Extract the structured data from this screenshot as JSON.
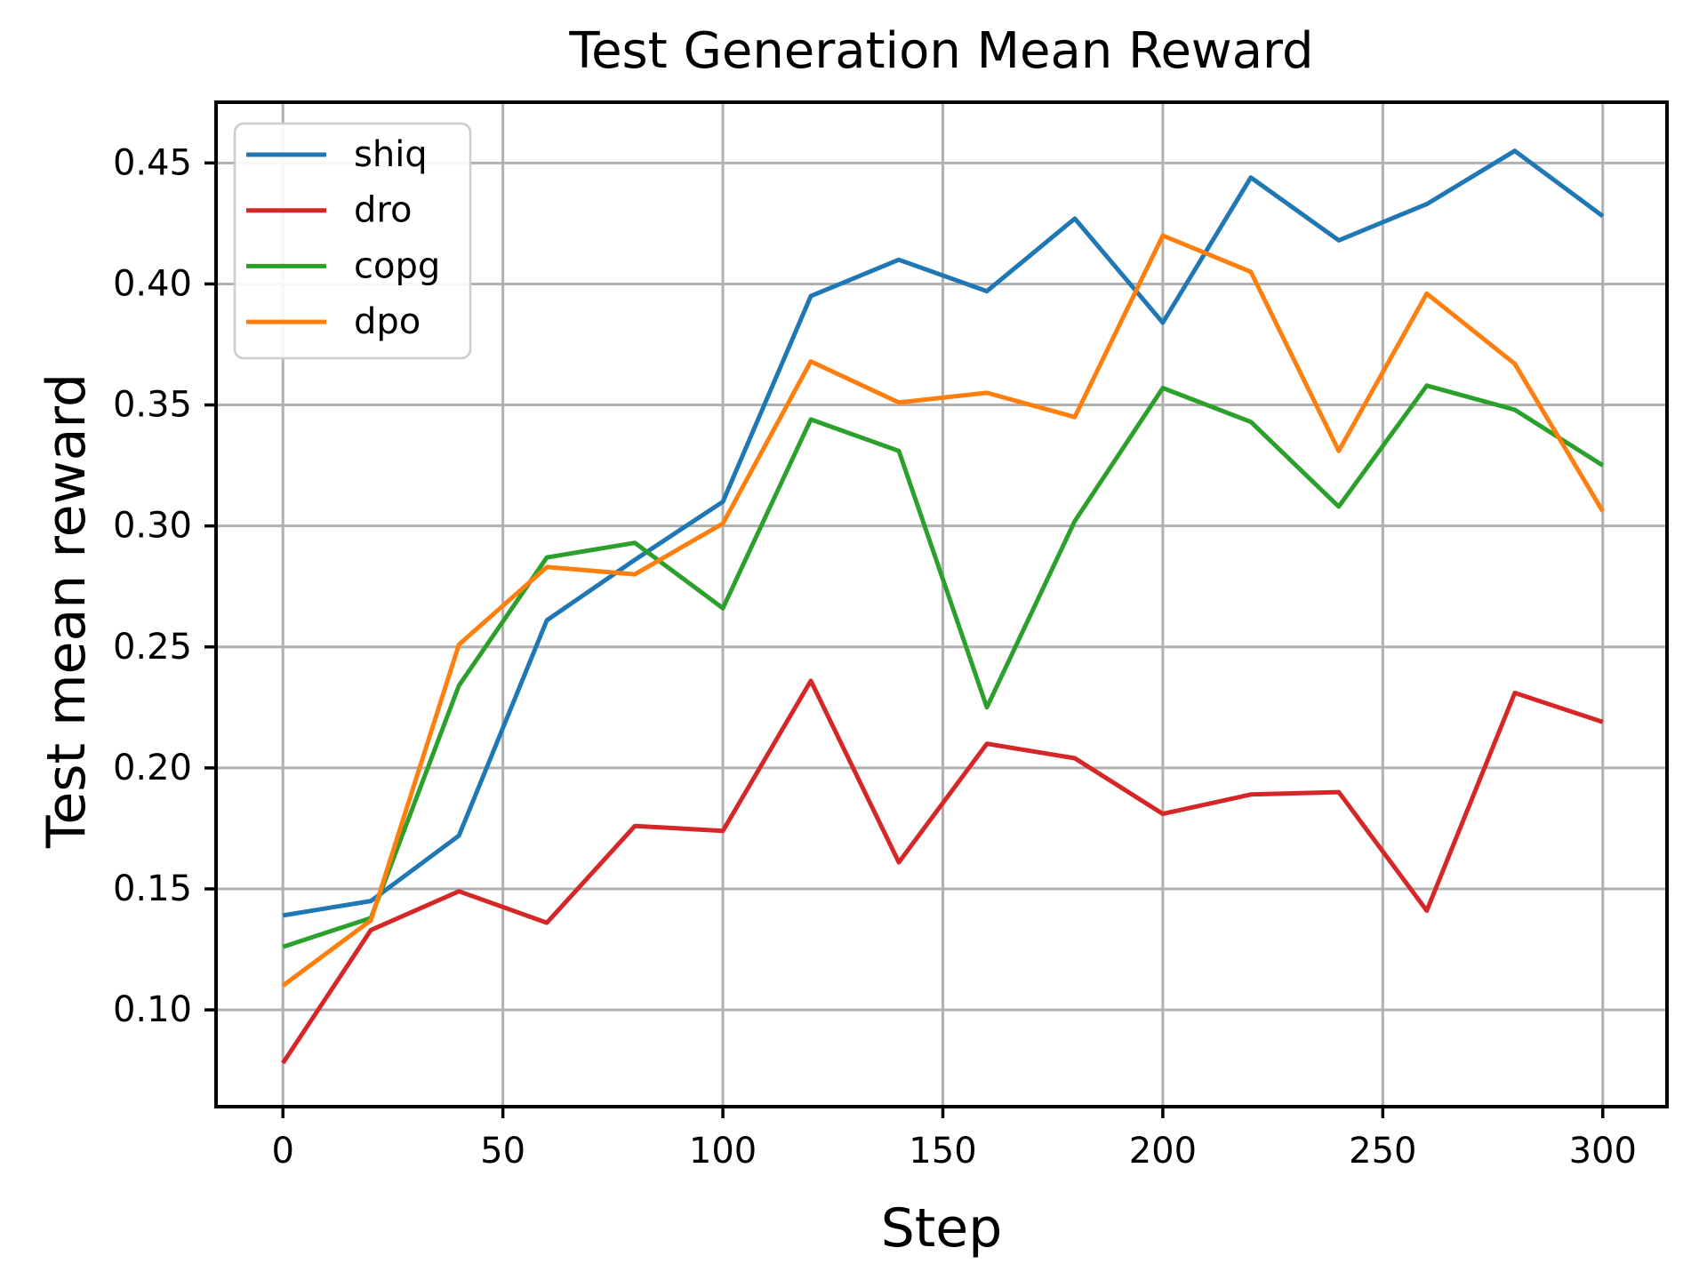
{
  "figure": {
    "title": "Test Generation Mean Reward"
  },
  "chart_data": {
    "type": "line",
    "title": "Test Generation Mean Reward",
    "xlabel": "Step",
    "ylabel": "Test mean reward",
    "x": [
      0,
      20,
      40,
      60,
      80,
      100,
      120,
      140,
      160,
      180,
      200,
      220,
      240,
      260,
      280,
      300
    ],
    "series": [
      {
        "name": "shiq",
        "color": "#1f77b4",
        "values": [
          0.139,
          0.145,
          0.172,
          0.261,
          0.286,
          0.31,
          0.395,
          0.41,
          0.397,
          0.427,
          0.384,
          0.444,
          0.418,
          0.433,
          0.455,
          0.428
        ]
      },
      {
        "name": "dro",
        "color": "#d62728",
        "values": [
          0.078,
          0.133,
          0.149,
          0.136,
          0.176,
          0.174,
          0.236,
          0.161,
          0.21,
          0.204,
          0.181,
          0.189,
          0.19,
          0.141,
          0.231,
          0.219
        ]
      },
      {
        "name": "copg",
        "color": "#2ca02c",
        "values": [
          0.126,
          0.138,
          0.234,
          0.287,
          0.293,
          0.266,
          0.344,
          0.331,
          0.225,
          0.302,
          0.357,
          0.343,
          0.308,
          0.358,
          0.348,
          0.325
        ]
      },
      {
        "name": "dpo",
        "color": "#ff7f0e",
        "values": [
          0.11,
          0.137,
          0.251,
          0.283,
          0.28,
          0.301,
          0.368,
          0.351,
          0.355,
          0.345,
          0.42,
          0.405,
          0.331,
          0.396,
          0.367,
          0.306
        ]
      }
    ],
    "legend": {
      "position": "upper left",
      "labels": [
        "shiq",
        "dro",
        "copg",
        "dpo"
      ]
    },
    "xlim": [
      -15.2,
      314.6
    ],
    "ylim": [
      0.06,
      0.4751
    ],
    "xticks": [
      0,
      50,
      100,
      150,
      200,
      250,
      300
    ],
    "yticks": [
      0.1,
      0.15,
      0.2,
      0.25,
      0.3,
      0.35,
      0.4,
      0.45
    ],
    "grid": true,
    "grid_color": "#b0b0b0",
    "spine_color": "#000000",
    "background": "#ffffff"
  }
}
